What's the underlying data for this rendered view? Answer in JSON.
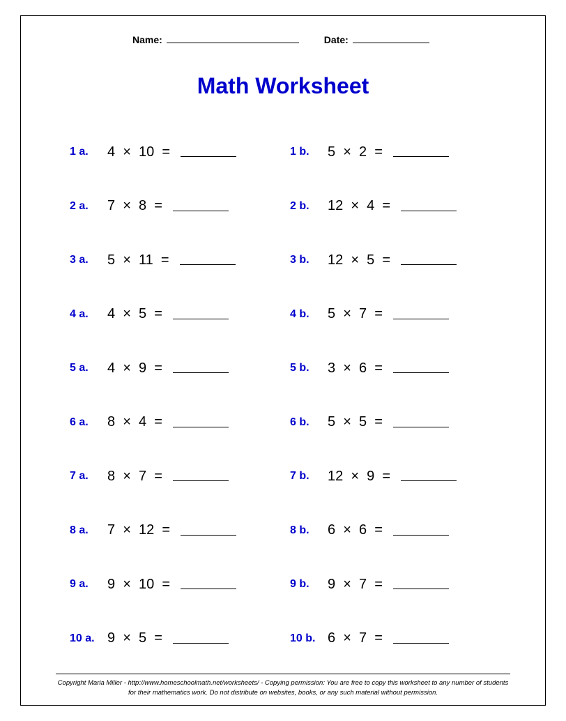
{
  "header": {
    "name_label": "Name:",
    "date_label": "Date:"
  },
  "title": "Math Worksheet",
  "colors": {
    "heading_color": "#0000cc",
    "label_color": "#0000cc",
    "text_color": "#000000",
    "border_color": "#000000",
    "background_color": "#ffffff"
  },
  "typography": {
    "title_fontsize": 32,
    "label_fontsize": 16,
    "expr_fontsize": 20,
    "header_fontsize": 14,
    "footer_fontsize": 9.5
  },
  "problems": [
    {
      "label": "1 a.",
      "a": 4,
      "b": 10
    },
    {
      "label": "1 b.",
      "a": 5,
      "b": 2
    },
    {
      "label": "2 a.",
      "a": 7,
      "b": 8
    },
    {
      "label": "2 b.",
      "a": 12,
      "b": 4
    },
    {
      "label": "3 a.",
      "a": 5,
      "b": 11
    },
    {
      "label": "3 b.",
      "a": 12,
      "b": 5
    },
    {
      "label": "4 a.",
      "a": 4,
      "b": 5
    },
    {
      "label": "4 b.",
      "a": 5,
      "b": 7
    },
    {
      "label": "5 a.",
      "a": 4,
      "b": 9
    },
    {
      "label": "5 b.",
      "a": 3,
      "b": 6
    },
    {
      "label": "6 a.",
      "a": 8,
      "b": 4
    },
    {
      "label": "6 b.",
      "a": 5,
      "b": 5
    },
    {
      "label": "7 a.",
      "a": 8,
      "b": 7
    },
    {
      "label": "7 b.",
      "a": 12,
      "b": 9
    },
    {
      "label": "8 a.",
      "a": 7,
      "b": 12
    },
    {
      "label": "8 b.",
      "a": 6,
      "b": 6
    },
    {
      "label": "9 a.",
      "a": 9,
      "b": 10
    },
    {
      "label": "9 b.",
      "a": 9,
      "b": 7
    },
    {
      "label": "10 a.",
      "a": 9,
      "b": 5
    },
    {
      "label": "10 b.",
      "a": 6,
      "b": 7
    }
  ],
  "operator": "×",
  "equals": "=",
  "footer": "Copyright Maria Miller - http://www.homeschoolmath.net/worksheets/ - Copying permission: You are free to copy this worksheet to any number of students for their mathematics work. Do not distribute on websites, books, or any such material without permission."
}
